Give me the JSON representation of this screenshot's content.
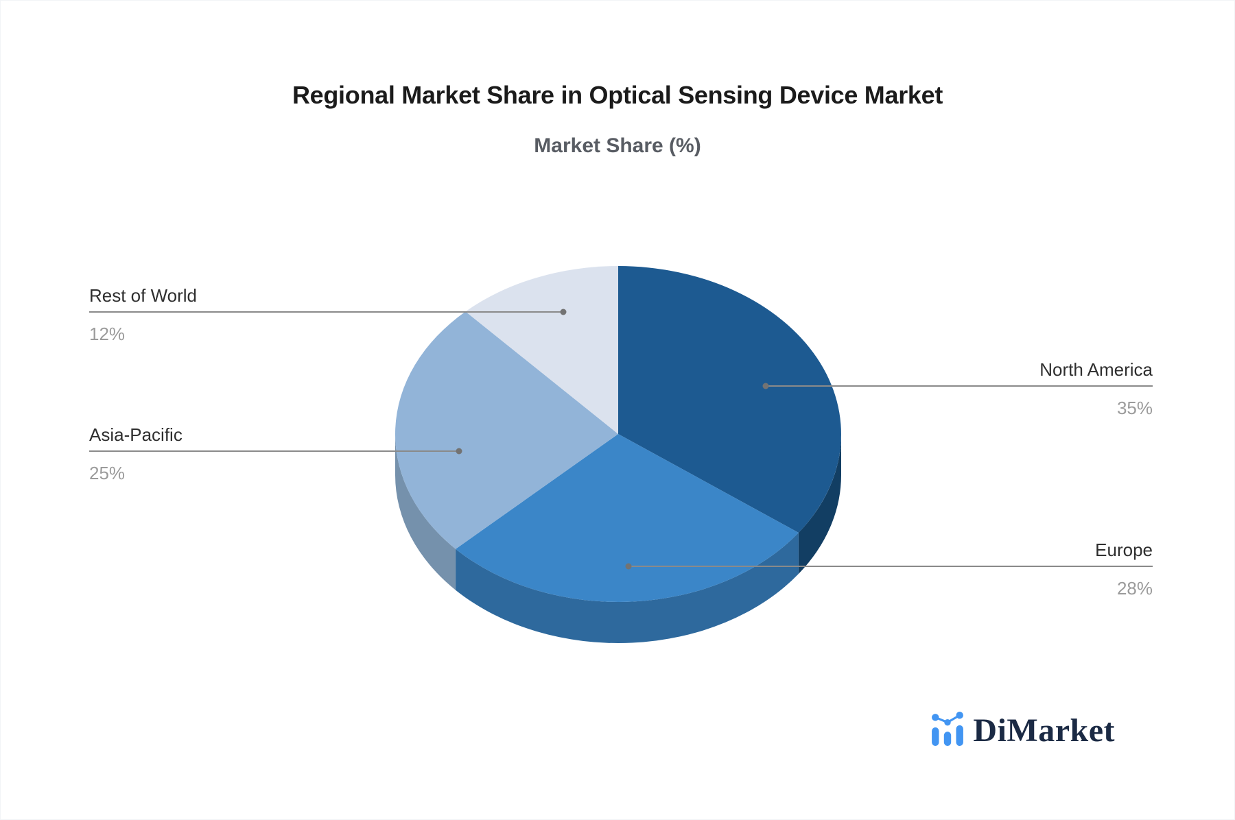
{
  "page": {
    "background": "#ffffff"
  },
  "header": {
    "title": "Regional Market Share in Optical Sensing Device Market",
    "subtitle": "Market Share (%)"
  },
  "brand": {
    "name": "DiMarket",
    "icon": "bar-line-chart-logo-icon",
    "text_color": "#1b2a44",
    "icon_color": "#4295f2"
  },
  "chart_data": {
    "type": "pie",
    "style": "3d",
    "title": "Regional Market Share in Optical Sensing Device Market",
    "subtitle": "Market Share (%)",
    "unit": "%",
    "start_angle_deg": 0,
    "direction": "clockwise",
    "legend": "none",
    "leader_line_color": "#8a8a8a",
    "leader_dot_color": "#737373",
    "label_color": "#2f2f2f",
    "value_color": "#9b9b9b",
    "segments": [
      {
        "label": "North America",
        "value": 35,
        "display": "35%",
        "color": "#1d5a91",
        "side_color": "#123e63",
        "label_side": "right"
      },
      {
        "label": "Europe",
        "value": 28,
        "display": "28%",
        "color": "#3b86c8",
        "side_color": "#2e699d",
        "label_side": "right"
      },
      {
        "label": "Asia-Pacific",
        "value": 25,
        "display": "25%",
        "color": "#92b4d8",
        "side_color": "#7591ac",
        "label_side": "left"
      },
      {
        "label": "Rest of World",
        "value": 12,
        "display": "12%",
        "color": "#dbe2ee",
        "side_color": "#b6c2d4",
        "label_side": "left"
      }
    ]
  }
}
